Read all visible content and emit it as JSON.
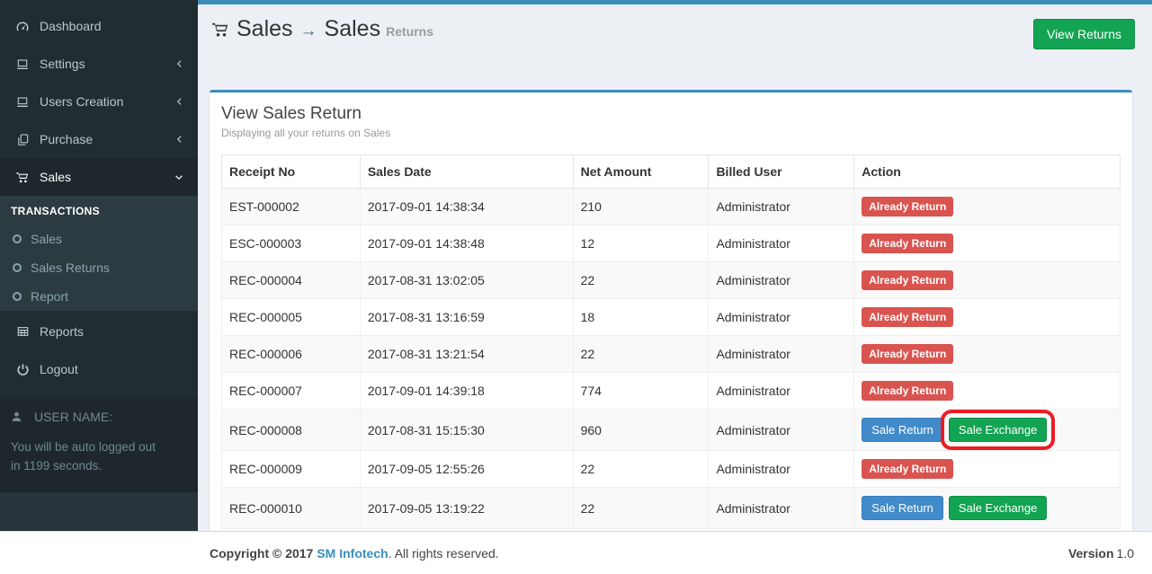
{
  "colors": {
    "accent_blue": "#3c8dbc",
    "sidebar_bg": "#222d32",
    "sidebar_active_bg": "#1e282c",
    "submenu_bg": "#2c3b41",
    "content_bg": "#ecf0f5",
    "success_green": "#12a452",
    "primary_blue": "#428bca",
    "danger_red": "#d9534f",
    "highlight_red": "#ed1c24"
  },
  "sidebar": {
    "menu": [
      {
        "label": "Dashboard"
      },
      {
        "label": "Settings"
      },
      {
        "label": "Users Creation"
      },
      {
        "label": "Purchase"
      },
      {
        "label": "Sales"
      }
    ],
    "submenu_header": "TRANSACTIONS",
    "submenu": [
      {
        "label": "Sales"
      },
      {
        "label": "Sales Returns"
      },
      {
        "label": "Report"
      }
    ],
    "menu_bottom": [
      {
        "label": "Reports"
      },
      {
        "label": "Logout"
      }
    ],
    "user_label": "USER NAME:",
    "logout_notice": "You will be auto logged out in 1199 seconds."
  },
  "header": {
    "section": "Sales",
    "arrow": "→",
    "title": "Sales",
    "subtitle": "Returns",
    "action_button": "View Returns"
  },
  "panel": {
    "title": "View Sales Return",
    "subtitle": "Displaying all your returns on Sales"
  },
  "table": {
    "headers": [
      "Receipt No",
      "Sales Date",
      "Net Amount",
      "Billed User",
      "Action"
    ],
    "rows": [
      {
        "receipt_no": "EST-000002",
        "sales_date": "2017-09-01 14:38:34",
        "net_amount": "210",
        "billed_user": "Administrator",
        "actions": [
          {
            "label": "Already Return",
            "style": "danger"
          }
        ]
      },
      {
        "receipt_no": "ESC-000003",
        "sales_date": "2017-09-01 14:38:48",
        "net_amount": "12",
        "billed_user": "Administrator",
        "actions": [
          {
            "label": "Already Return",
            "style": "danger"
          }
        ]
      },
      {
        "receipt_no": "REC-000004",
        "sales_date": "2017-08-31 13:02:05",
        "net_amount": "22",
        "billed_user": "Administrator",
        "actions": [
          {
            "label": "Already Return",
            "style": "danger"
          }
        ]
      },
      {
        "receipt_no": "REC-000005",
        "sales_date": "2017-08-31 13:16:59",
        "net_amount": "18",
        "billed_user": "Administrator",
        "actions": [
          {
            "label": "Already Return",
            "style": "danger"
          }
        ]
      },
      {
        "receipt_no": "REC-000006",
        "sales_date": "2017-08-31 13:21:54",
        "net_amount": "22",
        "billed_user": "Administrator",
        "actions": [
          {
            "label": "Already Return",
            "style": "danger"
          }
        ]
      },
      {
        "receipt_no": "REC-000007",
        "sales_date": "2017-09-01 14:39:18",
        "net_amount": "774",
        "billed_user": "Administrator",
        "actions": [
          {
            "label": "Already Return",
            "style": "danger"
          }
        ]
      },
      {
        "receipt_no": "REC-000008",
        "sales_date": "2017-08-31 15:15:30",
        "net_amount": "960",
        "billed_user": "Administrator",
        "actions": [
          {
            "label": "Sale Return",
            "style": "primary"
          },
          {
            "label": "Sale Exchange",
            "style": "success",
            "highlighted": true
          }
        ]
      },
      {
        "receipt_no": "REC-000009",
        "sales_date": "2017-09-05 12:55:26",
        "net_amount": "22",
        "billed_user": "Administrator",
        "actions": [
          {
            "label": "Already Return",
            "style": "danger"
          }
        ]
      },
      {
        "receipt_no": "REC-000010",
        "sales_date": "2017-09-05 13:19:22",
        "net_amount": "22",
        "billed_user": "Administrator",
        "actions": [
          {
            "label": "Sale Return",
            "style": "primary"
          },
          {
            "label": "Sale Exchange",
            "style": "success"
          }
        ]
      }
    ]
  },
  "footer": {
    "copyright_bold": "Copyright © 2017",
    "company": "SM Infotech",
    "rights": ". All rights reserved.",
    "version_label": "Version",
    "version_value": "1.0"
  }
}
